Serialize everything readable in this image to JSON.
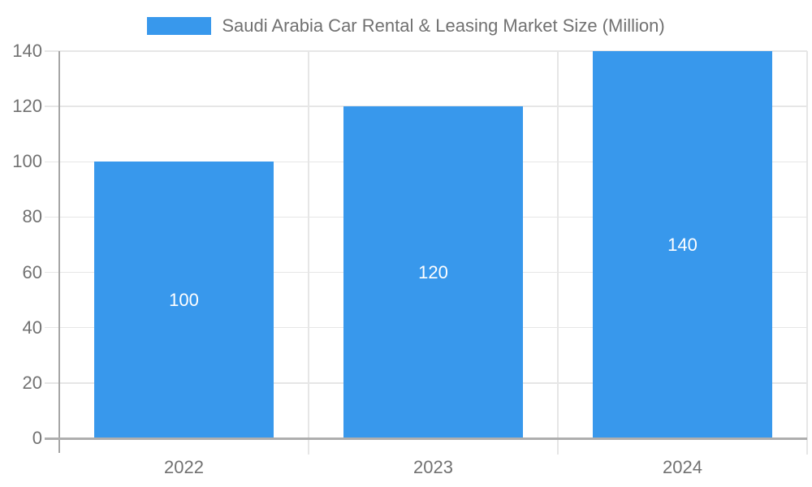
{
  "chart_data": {
    "type": "bar",
    "title": "Saudi Arabia Car Rental & Leasing Market Size (Million)",
    "categories": [
      "2022",
      "2023",
      "2024"
    ],
    "values": [
      100,
      120,
      140
    ],
    "series": [
      {
        "name": "Saudi Arabia Car Rental & Leasing Market Size (Million)",
        "values": [
          100,
          120,
          140
        ]
      }
    ],
    "xlabel": "",
    "ylabel": "",
    "ylim": [
      0,
      140
    ],
    "yticks": [
      0,
      20,
      40,
      60,
      80,
      100,
      120,
      140
    ],
    "grid": true,
    "legend_position": "top",
    "value_label_position": "center-of-bar",
    "bar_width_fraction": 0.72,
    "bar_color": "#3898ec",
    "bar_label_color": "#ffffff",
    "axis_text_color": "#717171",
    "gridline_color": "#e6e6e6",
    "axis_line_color": "#a6a6a6",
    "baseline_color": "#aeaeae",
    "background_color": "#ffffff"
  },
  "legend": {
    "swatch_color": "#3898ec",
    "label": "Saudi Arabia Car Rental & Leasing Market Size (Million)"
  }
}
